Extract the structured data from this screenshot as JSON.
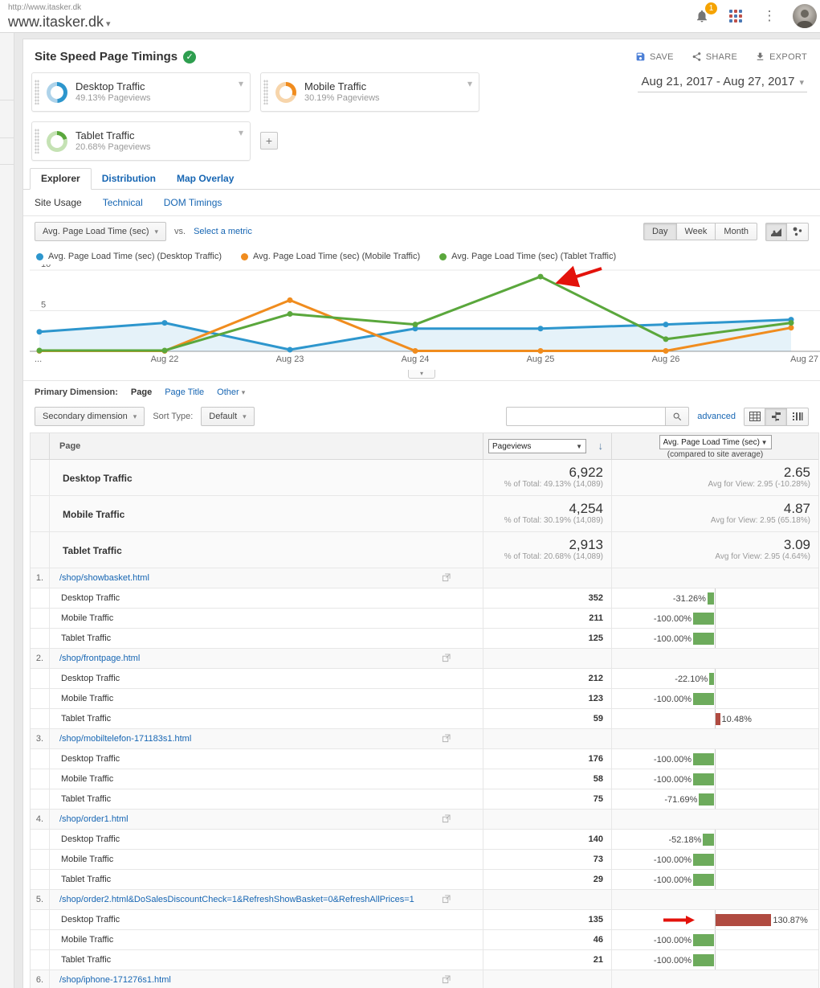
{
  "icons": {
    "caret_down": "▾",
    "select_caret": "▼",
    "plus": "+",
    "more": "⋮",
    "sort_desc": "↓",
    "check": "✓",
    "expand": "▾"
  },
  "header": {
    "url": "http://www.itasker.dk",
    "property": "www.itasker.dk",
    "notification_count": "1"
  },
  "report": {
    "title": "Site Speed Page Timings",
    "save_label": "SAVE",
    "share_label": "SHARE",
    "export_label": "EXPORT",
    "date_range": "Aug 21, 2017 - Aug 27, 2017"
  },
  "segments": [
    {
      "name": "Desktop Traffic",
      "subtitle": "49.13% Pageviews",
      "pct": 49.13,
      "color": "#2d96cd",
      "color_light": "#aed3ea"
    },
    {
      "name": "Mobile Traffic",
      "subtitle": "30.19% Pageviews",
      "pct": 30.19,
      "color": "#f08c1e",
      "color_light": "#f7d5ab"
    },
    {
      "name": "Tablet Traffic",
      "subtitle": "20.68% Pageviews",
      "pct": 20.68,
      "color": "#5aa73c",
      "color_light": "#c5e2b4"
    }
  ],
  "tabs": {
    "items": [
      "Explorer",
      "Distribution",
      "Map Overlay"
    ],
    "active": "Explorer"
  },
  "subtabs": {
    "items": [
      "Site Usage",
      "Technical",
      "DOM Timings"
    ],
    "active": "Site Usage"
  },
  "metric_bar": {
    "metric_select": "Avg. Page Load Time (sec)",
    "vs_label": "vs.",
    "select_metric": "Select a metric",
    "granularity": [
      "Day",
      "Week",
      "Month"
    ],
    "granularity_active": "Day"
  },
  "chart_data": {
    "type": "line",
    "x": [
      "...",
      "Aug 22",
      "Aug 23",
      "Aug 24",
      "Aug 25",
      "Aug 26",
      "Aug 27"
    ],
    "ylim": [
      0,
      10
    ],
    "yticks": [
      5,
      10
    ],
    "grid": true,
    "legend_position": "top",
    "series": [
      {
        "name": "Avg. Page Load Time (sec) (Desktop Traffic)",
        "color": "#2d96cd",
        "area": true,
        "values": [
          2.4,
          3.5,
          0.2,
          2.8,
          2.8,
          3.3,
          3.9
        ]
      },
      {
        "name": "Avg. Page Load Time (sec) (Mobile Traffic)",
        "color": "#f08c1e",
        "area": false,
        "values": [
          0.05,
          0.05,
          6.3,
          0.05,
          0.05,
          0.05,
          2.9
        ]
      },
      {
        "name": "Avg. Page Load Time (sec) (Tablet Traffic)",
        "color": "#5aa73c",
        "area": false,
        "values": [
          0.1,
          0.1,
          4.6,
          3.3,
          9.2,
          1.5,
          3.5
        ]
      }
    ],
    "annotation": {
      "type": "red-arrow",
      "points_at": "Tablet Traffic peak Aug 25"
    }
  },
  "dimension_bar": {
    "label": "Primary Dimension:",
    "items": [
      "Page",
      "Page Title",
      "Other"
    ],
    "active": "Page"
  },
  "table_controls": {
    "secondary_dimension": "Secondary dimension",
    "sort_type_label": "Sort Type:",
    "sort_type": "Default",
    "search_value": "",
    "advanced": "advanced"
  },
  "table": {
    "columns": {
      "page": "Page",
      "pageviews": "Pageviews",
      "metric": "Avg. Page Load Time (sec)",
      "metric_note": "(compared to site average)"
    },
    "summary_rows": [
      {
        "label": "Desktop Traffic",
        "pageviews": "6,922",
        "pageviews_note": "% of Total: 49.13% (14,089)",
        "metric": "2.65",
        "metric_note": "Avg for View: 2.95 (-10.28%)"
      },
      {
        "label": "Mobile Traffic",
        "pageviews": "4,254",
        "pageviews_note": "% of Total: 30.19% (14,089)",
        "metric": "4.87",
        "metric_note": "Avg for View: 2.95 (65.18%)"
      },
      {
        "label": "Tablet Traffic",
        "pageviews": "2,913",
        "pageviews_note": "% of Total: 20.68% (14,089)",
        "metric": "3.09",
        "metric_note": "Avg for View: 2.95 (4.64%)"
      }
    ],
    "groups": [
      {
        "index": "1.",
        "page": "/shop/showbasket.html",
        "rows": [
          {
            "label": "Desktop Traffic",
            "pageviews": "352",
            "pct": -31.26,
            "pct_label": "-31.26%"
          },
          {
            "label": "Mobile Traffic",
            "pageviews": "211",
            "pct": -100,
            "pct_label": "-100.00%"
          },
          {
            "label": "Tablet Traffic",
            "pageviews": "125",
            "pct": -100,
            "pct_label": "-100.00%"
          }
        ]
      },
      {
        "index": "2.",
        "page": "/shop/frontpage.html",
        "rows": [
          {
            "label": "Desktop Traffic",
            "pageviews": "212",
            "pct": -22.1,
            "pct_label": "-22.10%"
          },
          {
            "label": "Mobile Traffic",
            "pageviews": "123",
            "pct": -100,
            "pct_label": "-100.00%"
          },
          {
            "label": "Tablet Traffic",
            "pageviews": "59",
            "pct": 10.48,
            "pct_label": "10.48%"
          }
        ]
      },
      {
        "index": "3.",
        "page": "/shop/mobiltelefon-171183s1.html",
        "rows": [
          {
            "label": "Desktop Traffic",
            "pageviews": "176",
            "pct": -100,
            "pct_label": "-100.00%"
          },
          {
            "label": "Mobile Traffic",
            "pageviews": "58",
            "pct": -100,
            "pct_label": "-100.00%"
          },
          {
            "label": "Tablet Traffic",
            "pageviews": "75",
            "pct": -71.69,
            "pct_label": "-71.69%"
          }
        ]
      },
      {
        "index": "4.",
        "page": "/shop/order1.html",
        "rows": [
          {
            "label": "Desktop Traffic",
            "pageviews": "140",
            "pct": -52.18,
            "pct_label": "-52.18%"
          },
          {
            "label": "Mobile Traffic",
            "pageviews": "73",
            "pct": -100,
            "pct_label": "-100.00%"
          },
          {
            "label": "Tablet Traffic",
            "pageviews": "29",
            "pct": -100,
            "pct_label": "-100.00%"
          }
        ]
      },
      {
        "index": "5.",
        "page": "/shop/order2.html&DoSalesDiscountCheck=1&RefreshShowBasket=0&RefreshAllPrices=1",
        "rows": [
          {
            "label": "Desktop Traffic",
            "pageviews": "135",
            "pct": 130.87,
            "pct_label": "130.87%",
            "arrow": true
          },
          {
            "label": "Mobile Traffic",
            "pageviews": "46",
            "pct": -100,
            "pct_label": "-100.00%"
          },
          {
            "label": "Tablet Traffic",
            "pageviews": "21",
            "pct": -100,
            "pct_label": "-100.00%"
          }
        ]
      },
      {
        "index": "6.",
        "page": "/shop/iphone-171276s1.html",
        "rows": []
      }
    ]
  }
}
